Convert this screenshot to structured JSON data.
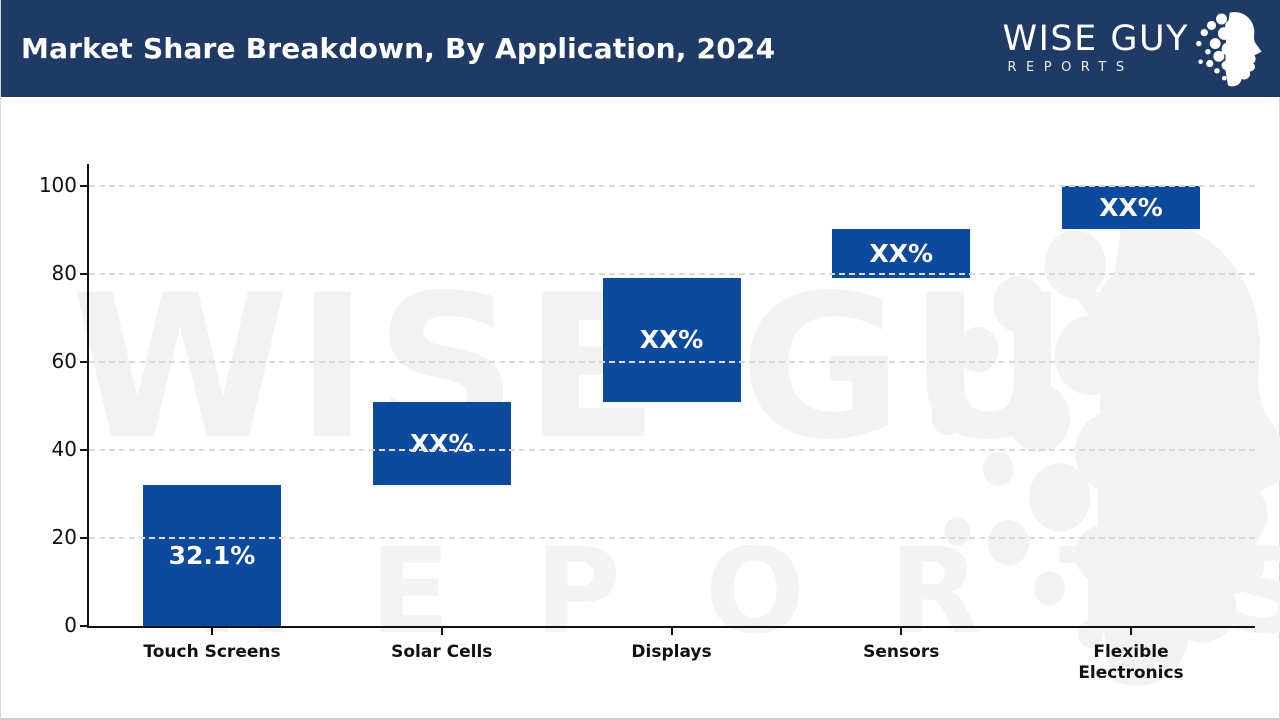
{
  "header": {
    "title": "Market Share Breakdown, By Application, 2024",
    "logo": {
      "line1": "WISE GUY",
      "line2": "REPORTS"
    }
  },
  "watermark": {
    "line1": "WISE GUY",
    "line2": "REPORTS"
  },
  "chart_data": {
    "type": "bar",
    "variant": "waterfall",
    "title": "Market Share Breakdown, By Application, 2024",
    "categories": [
      "Touch Screens",
      "Solar Cells",
      "Displays",
      "Sensors",
      "Flexible Electronics"
    ],
    "bars": [
      {
        "category": "Touch Screens",
        "start": 0,
        "end": 32.1,
        "label": "32.1%"
      },
      {
        "category": "Solar Cells",
        "start": 32.1,
        "end": 51.0,
        "label": "XX%"
      },
      {
        "category": "Displays",
        "start": 51.0,
        "end": 79.1,
        "label": "XX%"
      },
      {
        "category": "Sensors",
        "start": 79.1,
        "end": 90.3,
        "label": "XX%"
      },
      {
        "category": "Flexible Electronics",
        "start": 90.3,
        "end": 100.0,
        "label": "XX%"
      }
    ],
    "xlabel": "",
    "ylabel": "",
    "yticks": [
      0,
      20,
      40,
      60,
      80,
      100
    ],
    "ylim": [
      0,
      105
    ],
    "grid": true,
    "grid_style": "dashed-horizontal",
    "legend": false,
    "bar_color": "#0d4a9e",
    "bar_label_color": "#ffffff"
  },
  "colors": {
    "header_bg": "#203a66",
    "bar": "#0d4a9e",
    "grid": "#d9d9d9",
    "axis": "#111111",
    "watermark": "#f2f2f2"
  }
}
